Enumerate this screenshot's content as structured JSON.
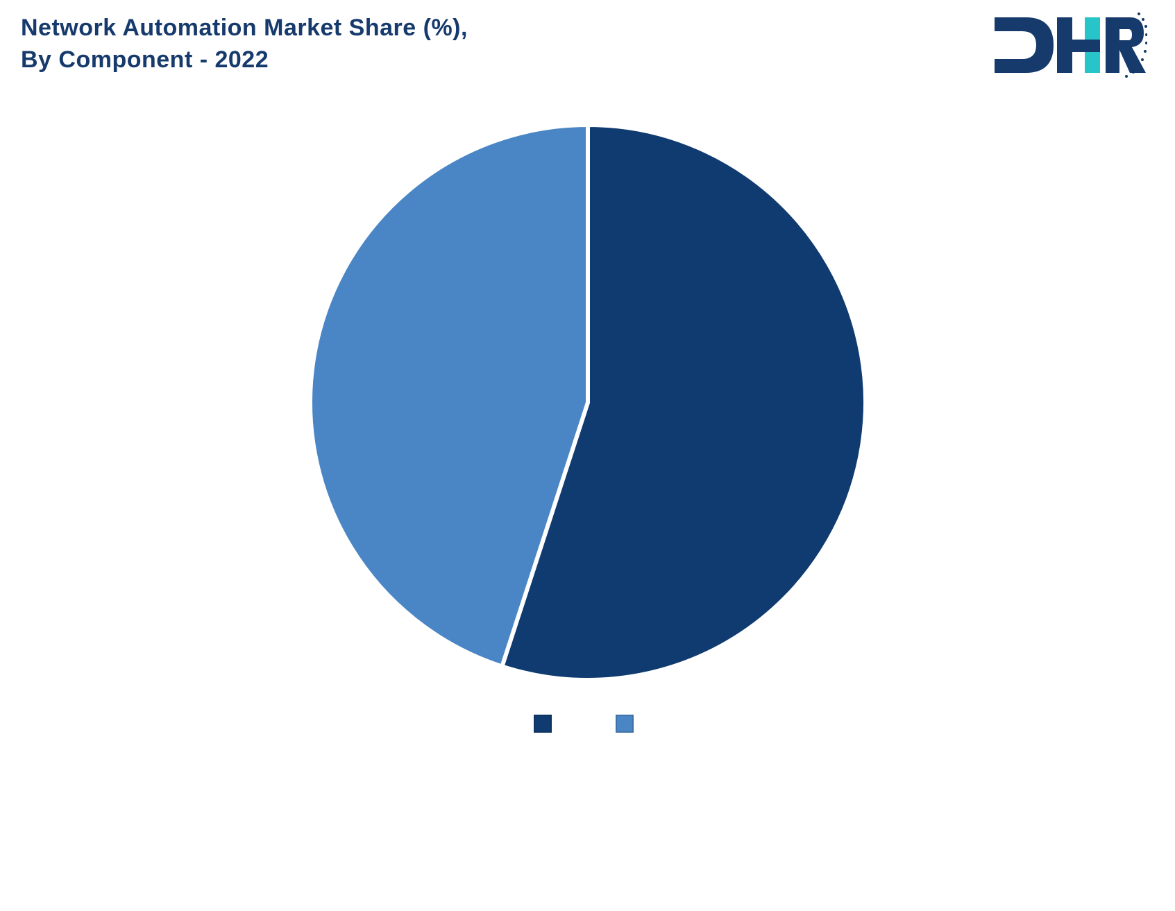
{
  "title": {
    "line1": "Network Automation Market Share (%),",
    "line2": "By Component - 2022",
    "color": "#163a6b",
    "fontsize_pt": 34
  },
  "logo": {
    "letter_color_dark": "#163a6b",
    "letter_color_accent": "#27c5c9",
    "dots_color": "#163a6b"
  },
  "chart": {
    "type": "pie",
    "background_color": "#ffffff",
    "stroke_color": "#ffffff",
    "stroke_width": 6,
    "slices": [
      {
        "label": "",
        "value": 55,
        "color": "#0f3b70"
      },
      {
        "label": "",
        "value": 45,
        "color": "#4a86c5"
      }
    ],
    "radius": 400,
    "start_angle_deg": 0
  },
  "legend": {
    "items": [
      {
        "label": "",
        "color": "#0f3b70"
      },
      {
        "label": "",
        "color": "#4a86c5"
      }
    ],
    "swatch_size": 26,
    "label_fontsize": 22
  }
}
